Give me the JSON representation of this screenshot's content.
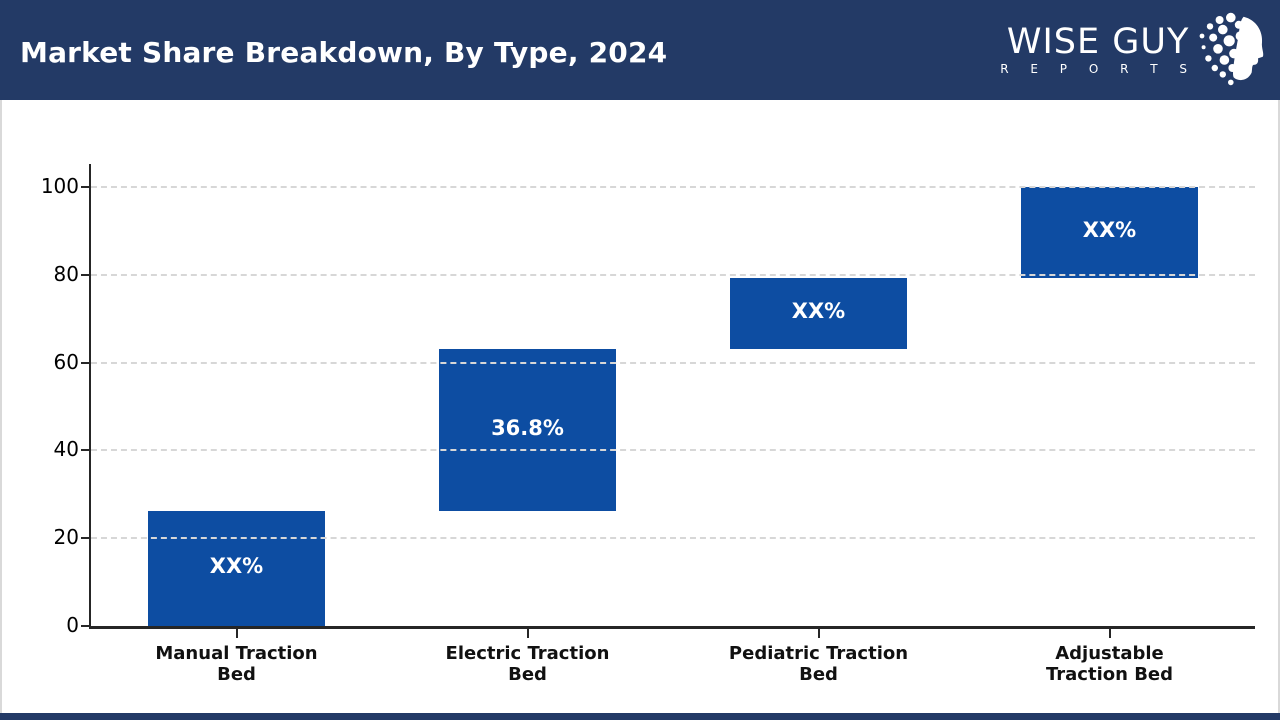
{
  "header": {
    "title": "Market Share Breakdown, By Type, 2024",
    "logo": {
      "name": "WISE GUY",
      "sub": "R E P O R T S"
    }
  },
  "watermark": {
    "line1": "WISE GUY",
    "line2": "REPORTS"
  },
  "colors": {
    "header_bg": "#233A66",
    "footer_bg": "#233A66",
    "bar": "#0D4DA2",
    "grid": "#D7D7D7",
    "axis": "#262626",
    "watermark": "#F1F1F1"
  },
  "chart_data": {
    "type": "bar",
    "variant": "floating-waterfall",
    "title": "Market Share Breakdown, By Type, 2024",
    "categories": [
      [
        "Manual Traction",
        "Bed"
      ],
      [
        "Electric Traction",
        "Bed"
      ],
      [
        "Pediatric Traction",
        "Bed"
      ],
      [
        "Adjustable",
        "Traction Bed"
      ]
    ],
    "series": [
      {
        "name": "Market Share (%)",
        "segments": [
          {
            "category": "Manual Traction Bed",
            "start": 0,
            "end": 26.3,
            "value": 26.3,
            "label": "XX%"
          },
          {
            "category": "Electric Traction Bed",
            "start": 26.3,
            "end": 63.1,
            "value": 36.8,
            "label": "36.8%"
          },
          {
            "category": "Pediatric Traction Bed",
            "start": 63.1,
            "end": 79.3,
            "value": 16.2,
            "label": "XX%"
          },
          {
            "category": "Adjustable Traction Bed",
            "start": 79.3,
            "end": 100,
            "value": 20.7,
            "label": "XX%"
          }
        ]
      }
    ],
    "xlabel": "",
    "ylabel": "",
    "ylim": [
      0,
      100
    ],
    "yticks": [
      0,
      20,
      40,
      60,
      80,
      100
    ],
    "grid": "horizontal-dashed",
    "legend": false
  }
}
